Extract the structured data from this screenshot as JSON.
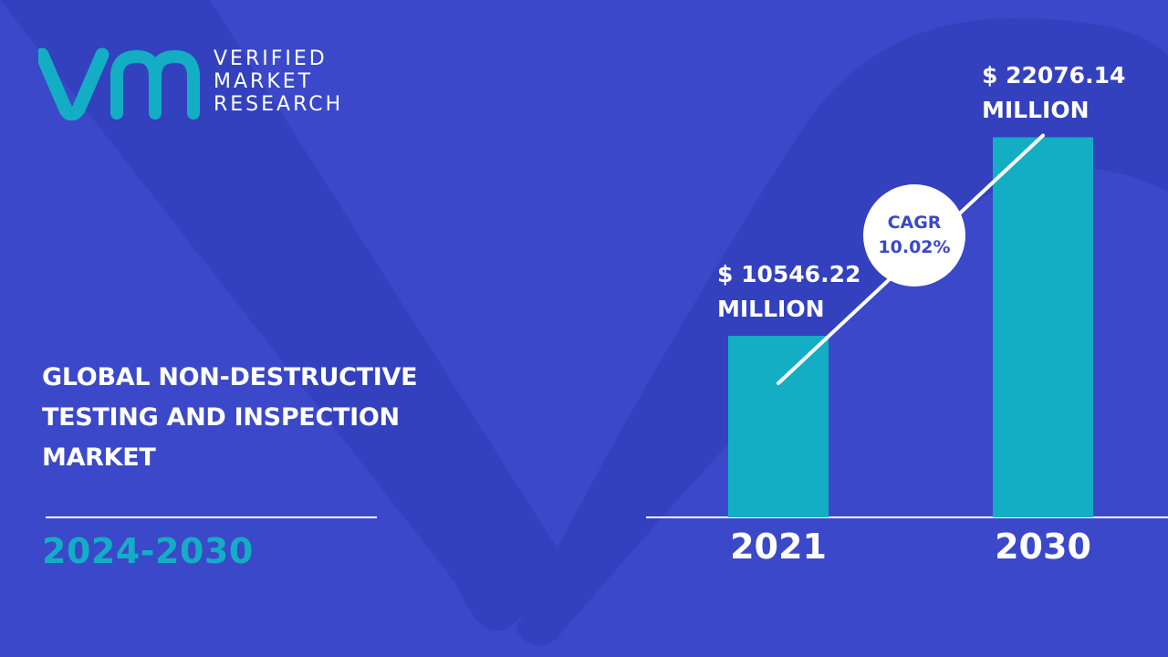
{
  "brand": {
    "line1": "VERIFIED",
    "line2": "MARKET",
    "line3": "RESEARCH",
    "accent_color": "#13aec4"
  },
  "title_lines": [
    "GLOBAL NON-DESTRUCTIVE",
    "TESTING AND INSPECTION",
    "MARKET"
  ],
  "period": "2024-2030",
  "colors": {
    "background": "#3b48c9",
    "bar": "#13aec4",
    "text": "#ffffff"
  },
  "chart_data": {
    "type": "bar",
    "categories": [
      "2021",
      "2030"
    ],
    "values": [
      10546.22,
      22076.14
    ],
    "data_labels": [
      [
        "$ 10546.22",
        "MILLION"
      ],
      [
        "$ 22076.14",
        "MILLION"
      ]
    ],
    "ylim": [
      0,
      26500
    ],
    "grid": false,
    "annotation": {
      "line1": "CAGR",
      "line2": "10.02%"
    }
  }
}
